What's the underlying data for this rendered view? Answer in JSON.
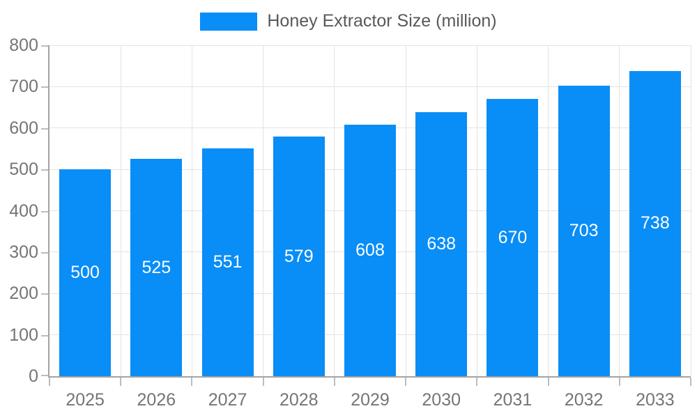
{
  "chart_data": {
    "type": "bar",
    "title": "Honey Extractor Size (million)",
    "legend_label": "Honey Extractor Size (million)",
    "legend_position": "top-center",
    "categories": [
      "2025",
      "2026",
      "2027",
      "2028",
      "2029",
      "2030",
      "2031",
      "2032",
      "2033"
    ],
    "values": [
      500,
      525,
      551,
      579,
      608,
      638,
      670,
      703,
      738
    ],
    "series": [
      {
        "name": "Honey Extractor Size (million)",
        "values": [
          500,
          525,
          551,
          579,
          608,
          638,
          670,
          703,
          738
        ]
      }
    ],
    "xlabel": "",
    "ylabel": "",
    "ylim": [
      0,
      800
    ],
    "yticks": [
      0,
      100,
      200,
      300,
      400,
      500,
      600,
      700,
      800
    ],
    "grid": "horizontal-lines-and-category-boundary-verticals",
    "show_value_labels": true,
    "value_label_placement": "centered-inside-bar",
    "colors": {
      "bar": "#098df7",
      "value_label": "#ffffff",
      "axis_text": "#757575",
      "legend_text": "#58595b",
      "gridline": "#e3e3e3",
      "axis_line": "#a3a3a3",
      "tick": "#bdbdbd",
      "background": "#ffffff"
    }
  }
}
